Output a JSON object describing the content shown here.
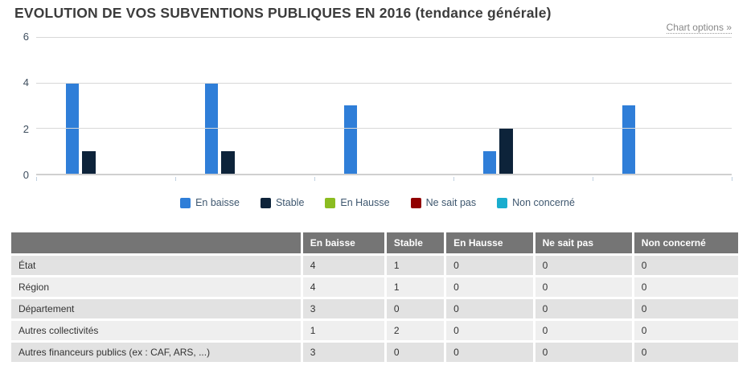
{
  "header": {
    "title": "EVOLUTION DE VOS SUBVENTIONS PUBLIQUES EN 2016 (tendance générale)",
    "chart_options_label": "Chart options »"
  },
  "chart_data": {
    "type": "bar",
    "title": "EVOLUTION DE VOS SUBVENTIONS PUBLIQUES EN 2016 (tendance générale)",
    "categories": [
      "État",
      "Région",
      "Département",
      "Autres collectivités",
      "Autres financeurs publics (ex : CAF, ARS, ...)"
    ],
    "series": [
      {
        "name": "En baisse",
        "color": "#2f7ed8",
        "values": [
          4,
          4,
          3,
          1,
          3
        ]
      },
      {
        "name": "Stable",
        "color": "#0d233a",
        "values": [
          1,
          1,
          0,
          2,
          0
        ]
      },
      {
        "name": "En Hausse",
        "color": "#8bbc21",
        "values": [
          0,
          0,
          0,
          0,
          0
        ]
      },
      {
        "name": "Ne sait pas",
        "color": "#910000",
        "values": [
          0,
          0,
          0,
          0,
          0
        ]
      },
      {
        "name": "Non concerné",
        "color": "#1aadce",
        "values": [
          0,
          0,
          0,
          0,
          0
        ]
      }
    ],
    "xlabel": "",
    "ylabel": "",
    "ylim": [
      0,
      6
    ],
    "yticks": [
      0,
      2,
      4,
      6
    ],
    "grid": true,
    "legend_position": "bottom",
    "x_tick_labels_visible": false
  },
  "table": {
    "columns": [
      "",
      "En baisse",
      "Stable",
      "En Hausse",
      "Ne sait pas",
      "Non concerné"
    ],
    "column_widths_pct": [
      39.9,
      11.5,
      8.2,
      12.2,
      13.6,
      14.6
    ],
    "rows": [
      {
        "label": "État",
        "values": [
          4,
          1,
          0,
          0,
          0
        ]
      },
      {
        "label": "Région",
        "values": [
          4,
          1,
          0,
          0,
          0
        ]
      },
      {
        "label": "Département",
        "values": [
          3,
          0,
          0,
          0,
          0
        ]
      },
      {
        "label": "Autres collectivités",
        "values": [
          1,
          2,
          0,
          0,
          0
        ]
      },
      {
        "label": "Autres financeurs publics (ex : CAF, ARS, ...)",
        "values": [
          3,
          0,
          0,
          0,
          0
        ]
      }
    ]
  }
}
